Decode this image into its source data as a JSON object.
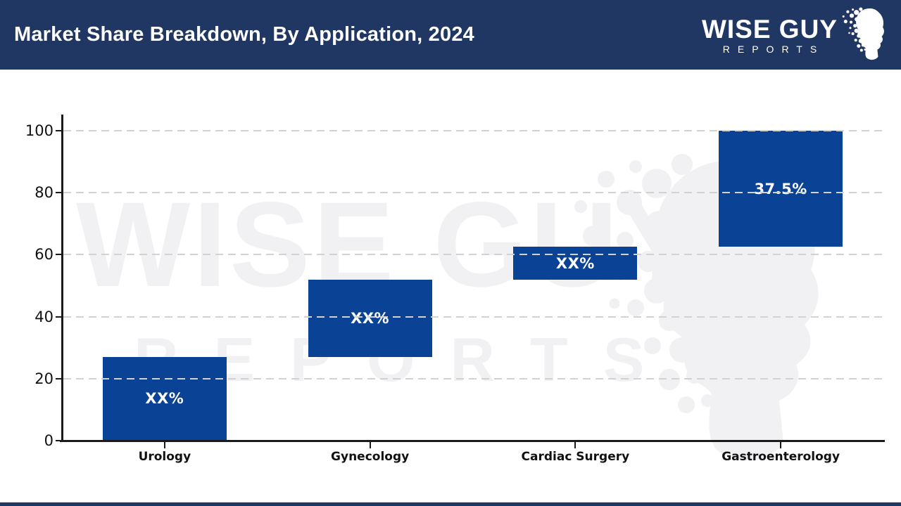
{
  "header": {
    "title": "Market Share Breakdown, By Application, 2024",
    "logo": {
      "line1": "WISE GUY",
      "line2": "REPORTS"
    }
  },
  "watermark": {
    "line1": "WISE GUY",
    "line2": "REPORTS"
  },
  "colors": {
    "header_bg": "#203663",
    "bar": "#0a4296",
    "grid": "#d2d2d2",
    "axis": "#1a1a1a",
    "watermark": "#f1f1f3",
    "bar_label_text": "#ffffff"
  },
  "chart_data": {
    "type": "bar",
    "subtype": "waterfall",
    "title": "Market Share Breakdown, By Application, 2024",
    "xlabel": "",
    "ylabel": "",
    "categories": [
      "Urology",
      "Gynecology",
      "Cardiac Surgery",
      "Gastroenterology"
    ],
    "segments": [
      {
        "category": "Urology",
        "start": 0,
        "end": 27,
        "value": 27,
        "label": "XX%"
      },
      {
        "category": "Gynecology",
        "start": 27,
        "end": 52,
        "value": 25,
        "label": "XX%"
      },
      {
        "category": "Cardiac Surgery",
        "start": 52,
        "end": 62.5,
        "value": 10.5,
        "label": "XX%"
      },
      {
        "category": "Gastroenterology",
        "start": 62.5,
        "end": 100,
        "value": 37.5,
        "label": "37.5%"
      }
    ],
    "ylim": [
      0,
      100
    ],
    "yticks": [
      0,
      20,
      40,
      60,
      80,
      100
    ],
    "grid": "horizontal-dashed",
    "gridlines_over_bars": true,
    "legend": "none",
    "bar_color": "#0a4296"
  }
}
